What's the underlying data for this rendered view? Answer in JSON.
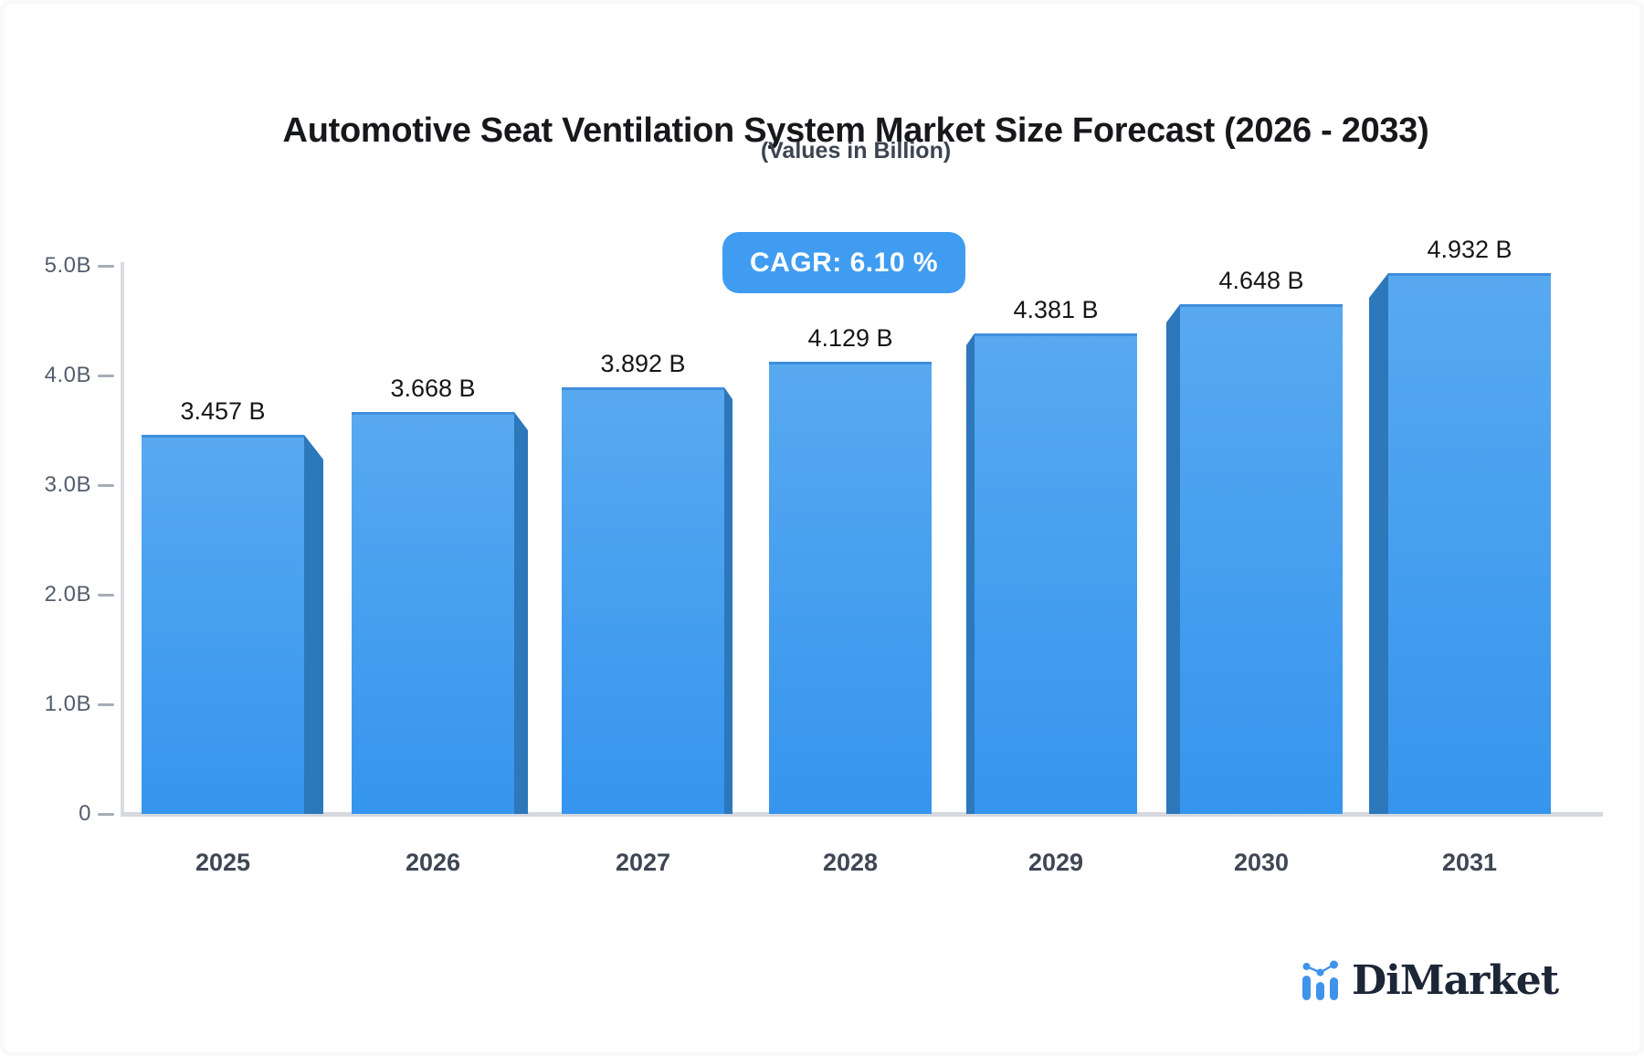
{
  "title": "Automotive Seat Ventilation System Market Size Forecast (2026 - 2033)",
  "subtitle": "(Values in Billion)",
  "badge": {
    "label": "CAGR: 6.10 %",
    "bg": "#3f9cf1",
    "text_color": "#ffffff"
  },
  "chart_data": {
    "type": "bar",
    "title": "Automotive Seat Ventilation System Market Size Forecast (2026 - 2033)",
    "subtitle": "(Values in Billion)",
    "categories": [
      "2025",
      "2026",
      "2027",
      "2028",
      "2029",
      "2030",
      "2031"
    ],
    "values": [
      3.457,
      3.668,
      3.892,
      4.129,
      4.381,
      4.648,
      4.932
    ],
    "value_labels": [
      "3.457 B",
      "3.668 B",
      "3.892 B",
      "4.129 B",
      "4.381 B",
      "4.648 B",
      "4.932 B"
    ],
    "unit": "Billion",
    "ylim": [
      0,
      5
    ],
    "y_ticks": [
      {
        "label": "5.0B",
        "value": 5.0
      },
      {
        "label": "4.0B",
        "value": 4.0
      },
      {
        "label": "3.0B",
        "value": 3.0
      },
      {
        "label": "2.0B",
        "value": 2.0
      },
      {
        "label": "1.0B",
        "value": 1.0
      },
      {
        "label": "0",
        "value": 0.0
      }
    ],
    "grid": "off",
    "legend": "none",
    "colors": {
      "bar_face_top": "#58a9f0",
      "bar_face_bottom": "#3595ee",
      "bar_face_edge": "#3e8edd",
      "bar_side": "#2d77bb",
      "axis_line": "#d9dce1",
      "tick_dash": "#a6adb7",
      "tick_text": "#535d6c",
      "value_text": "#141619"
    }
  },
  "footer": {
    "brand": "DiMarket",
    "logo_icon": "mini-bar-chart-icon",
    "brand_color": "#1c2636",
    "icon_color": "#3f93ea"
  }
}
